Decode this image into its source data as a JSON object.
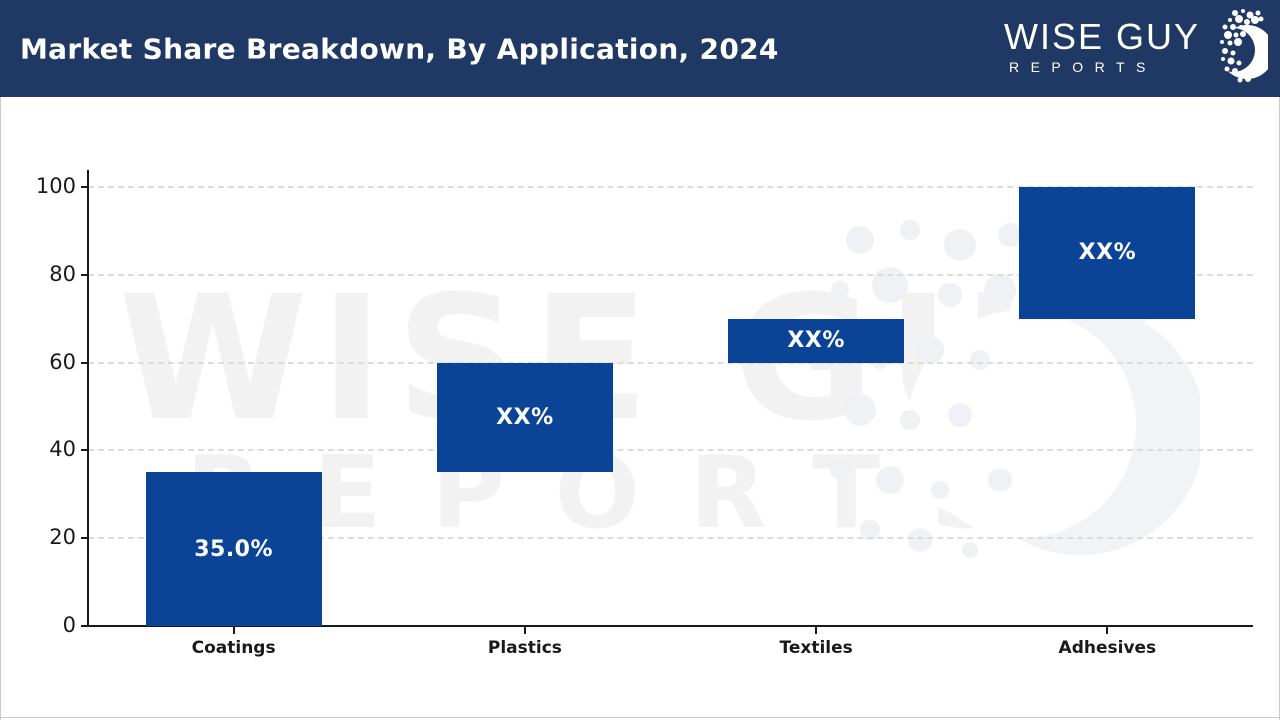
{
  "header": {
    "title": "Market Share Breakdown, By Application, 2024",
    "logo": {
      "line1": "WISE GUY",
      "line2": "REPORTS"
    }
  },
  "watermark": {
    "line1": "WISE GUY",
    "line2": "REPORTS"
  },
  "colors": {
    "header_bg": "#1f3864",
    "bar": "#0b4397",
    "gridline": "#dcdcdc",
    "axis_text": "#1a1a1a",
    "bar_label": "#ffffff",
    "watermark": "#f2f2f2"
  },
  "chart_data": {
    "type": "bar",
    "subtype": "waterfall",
    "title": "Market Share Breakdown, By Application, 2024",
    "categories": [
      "Coatings",
      "Plastics",
      "Textiles",
      "Adhesives"
    ],
    "segments": [
      {
        "category": "Coatings",
        "from": 0,
        "to": 35,
        "label": "35.0%"
      },
      {
        "category": "Plastics",
        "from": 35,
        "to": 60,
        "label": "XX%"
      },
      {
        "category": "Textiles",
        "from": 60,
        "to": 70,
        "label": "XX%"
      },
      {
        "category": "Adhesives",
        "from": 70,
        "to": 100,
        "label": "XX%"
      }
    ],
    "y_ticks": [
      0,
      20,
      40,
      60,
      80,
      100
    ],
    "ylim": [
      0,
      100
    ],
    "xlabel": "",
    "ylabel": "",
    "grid": "horizontal-dashed",
    "legend": "none"
  }
}
